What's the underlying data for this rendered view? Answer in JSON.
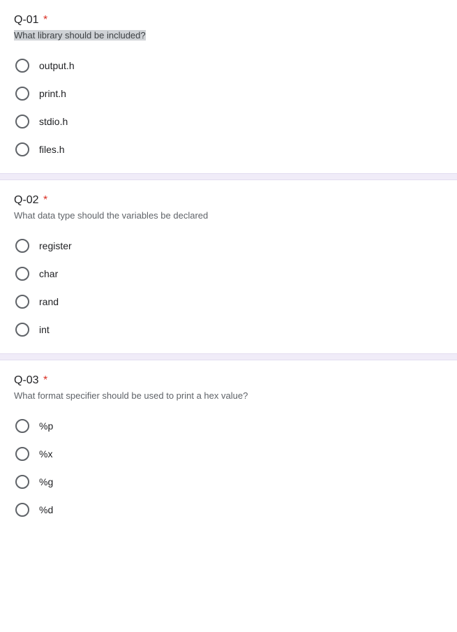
{
  "required_marker": "*",
  "questions": [
    {
      "id": "Q-01",
      "subtitle": "What library should be included?",
      "subtitle_highlighted": true,
      "options": [
        "output.h",
        "print.h",
        "stdio.h",
        "files.h"
      ]
    },
    {
      "id": "Q-02",
      "subtitle": "What data type should the variables be declared",
      "subtitle_highlighted": false,
      "options": [
        "register",
        "char",
        "rand",
        "int"
      ]
    },
    {
      "id": "Q-03",
      "subtitle": "What format specifier should be used to print a hex value?",
      "subtitle_highlighted": false,
      "options": [
        "%p",
        "%x",
        "%g",
        "%d"
      ]
    }
  ],
  "colors": {
    "text_primary": "#202124",
    "text_secondary": "#5f6368",
    "required": "#d93025",
    "radio_border": "#5f6368",
    "divider_bg": "#f0ecf8",
    "highlight_bg": "#cfd2d6"
  }
}
